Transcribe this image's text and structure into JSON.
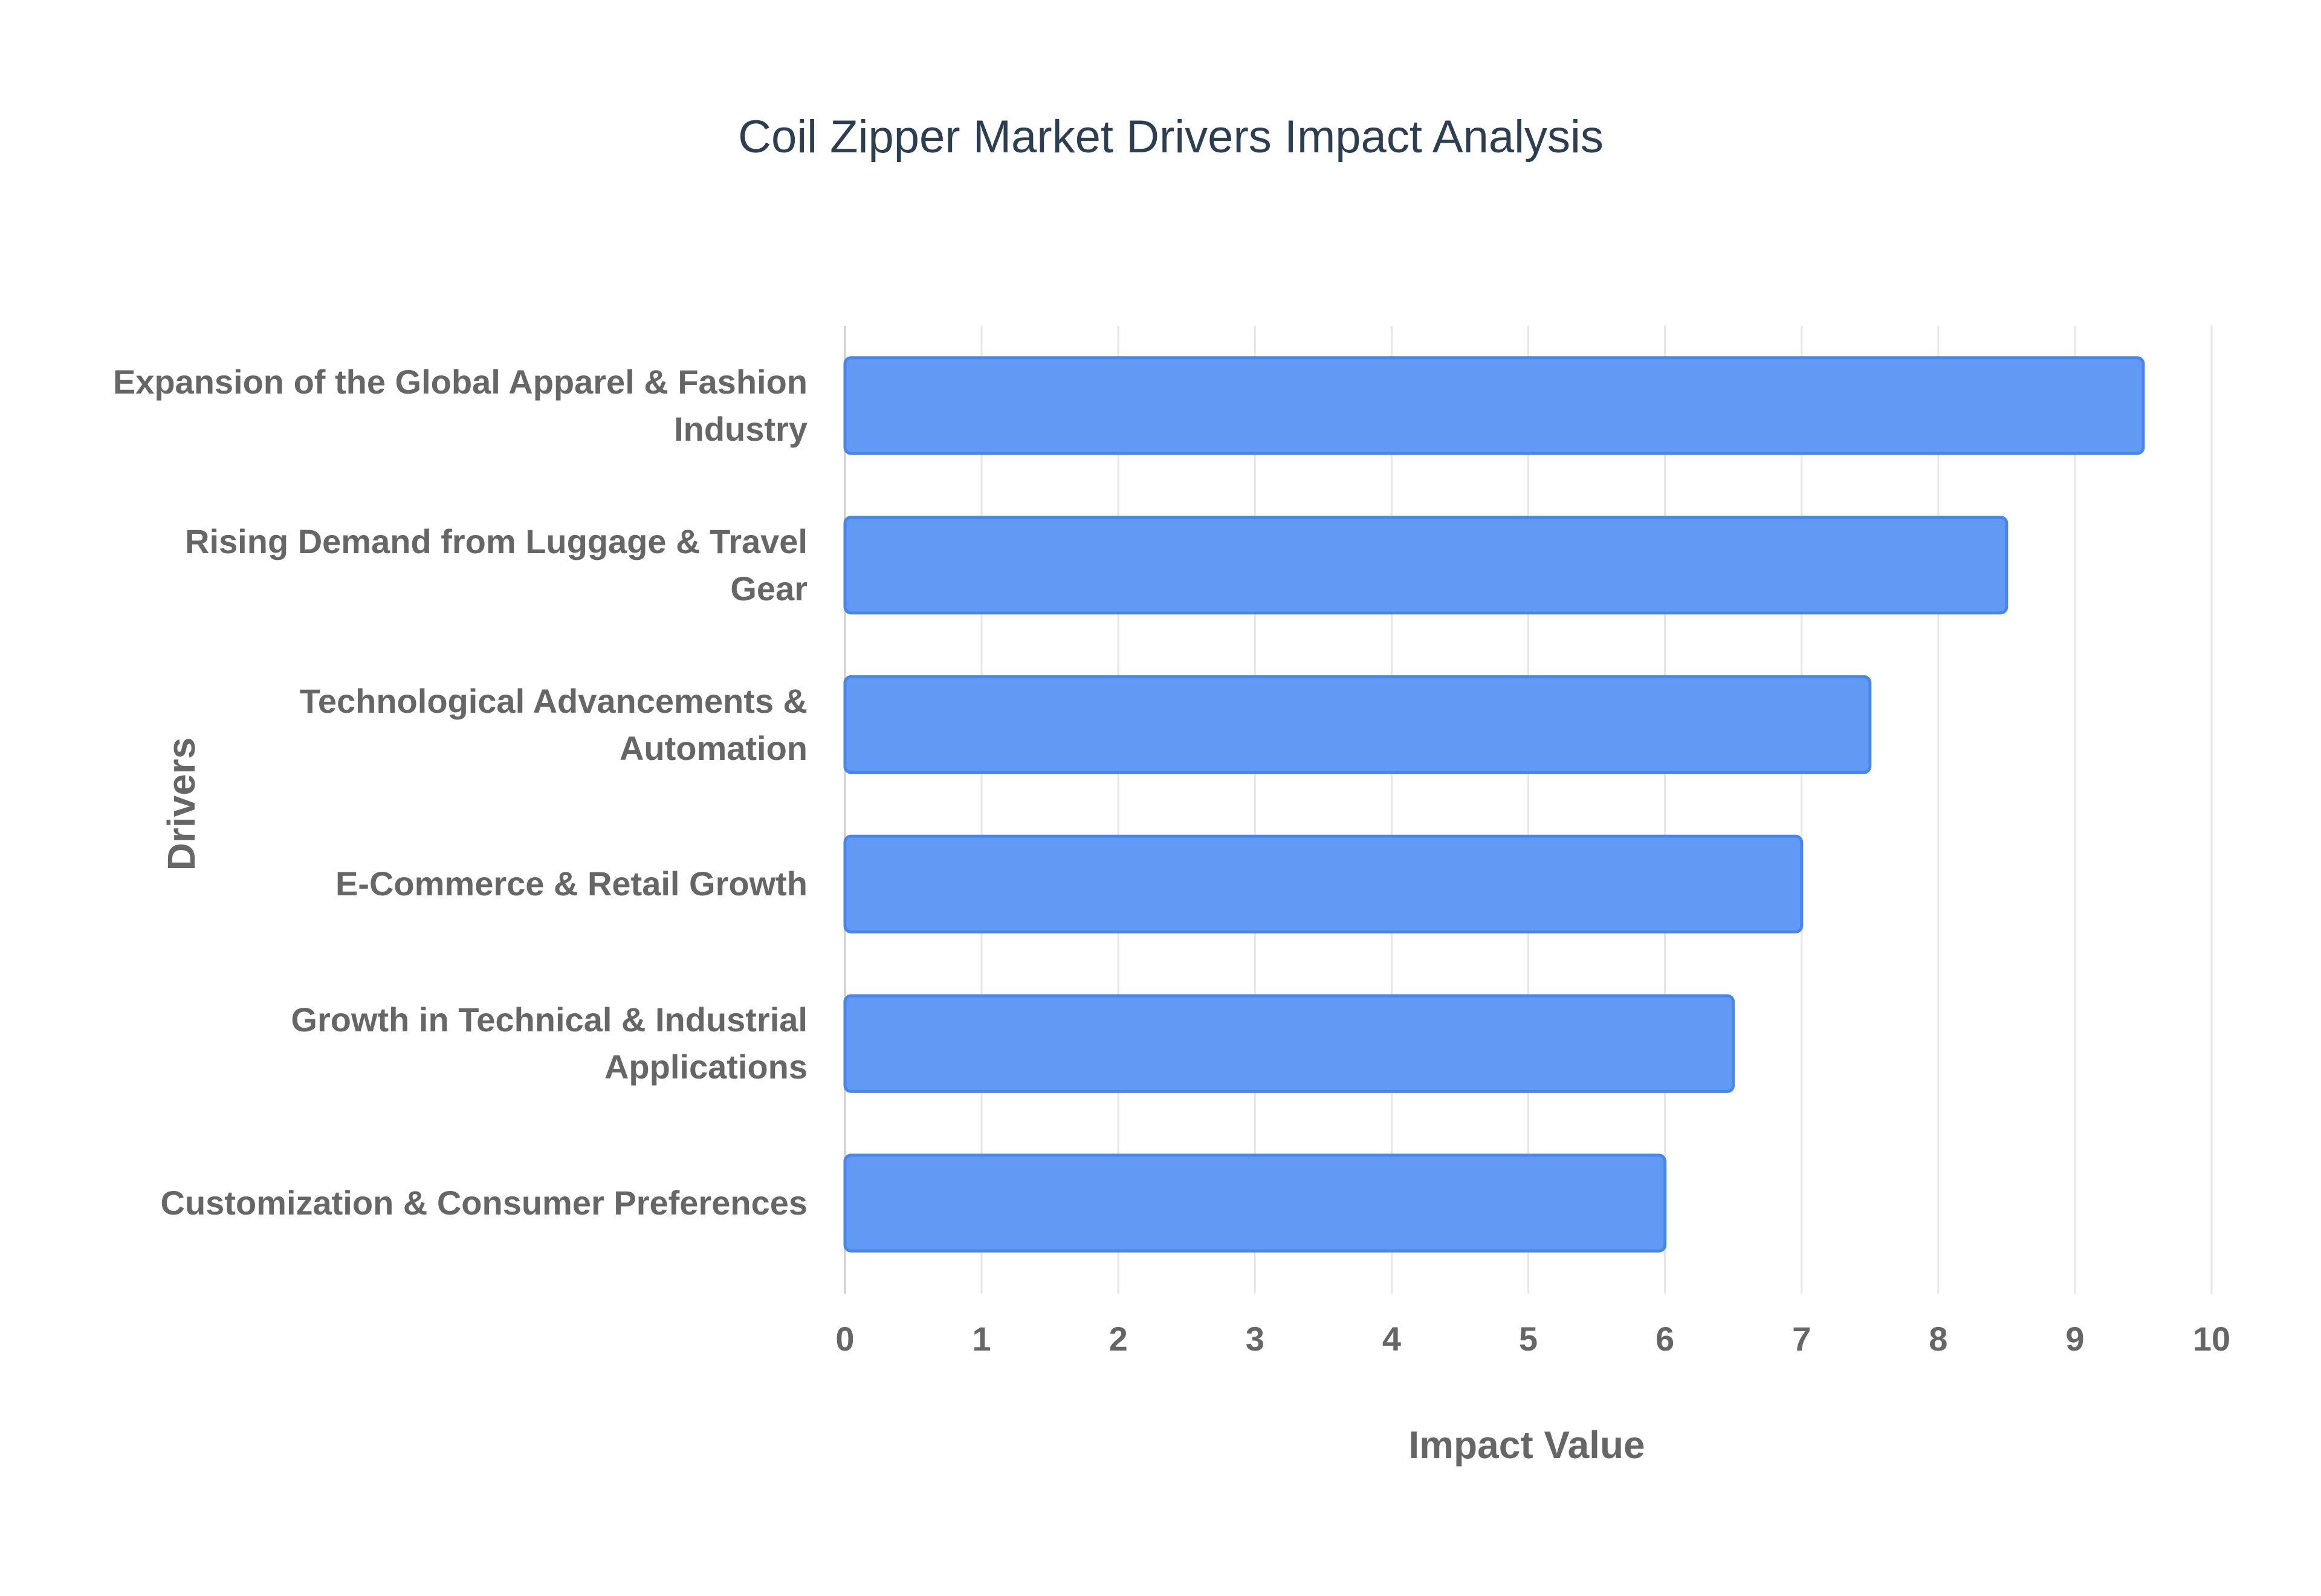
{
  "chart_data": {
    "type": "bar",
    "orientation": "horizontal",
    "title": "Coil Zipper Market Drivers Impact Analysis",
    "x_label": "Impact Value",
    "y_label": "Drivers",
    "categories": [
      "Expansion of the Global Apparel & Fashion Industry",
      "Rising Demand from Luggage & Travel Gear",
      "Technological Advancements & Automation",
      "E-Commerce & Retail Growth",
      "Growth in Technical & Industrial Applications",
      "Customization & Consumer Preferences"
    ],
    "values": [
      9.5,
      8.5,
      7.5,
      7,
      6.5,
      6
    ],
    "color": "#6199f5",
    "edge_color": "#4a86e8",
    "xlim": [
      0,
      10
    ],
    "xticks": [
      0,
      1,
      2,
      3,
      4,
      5,
      6,
      7,
      8,
      9,
      10
    ],
    "grid": true
  }
}
